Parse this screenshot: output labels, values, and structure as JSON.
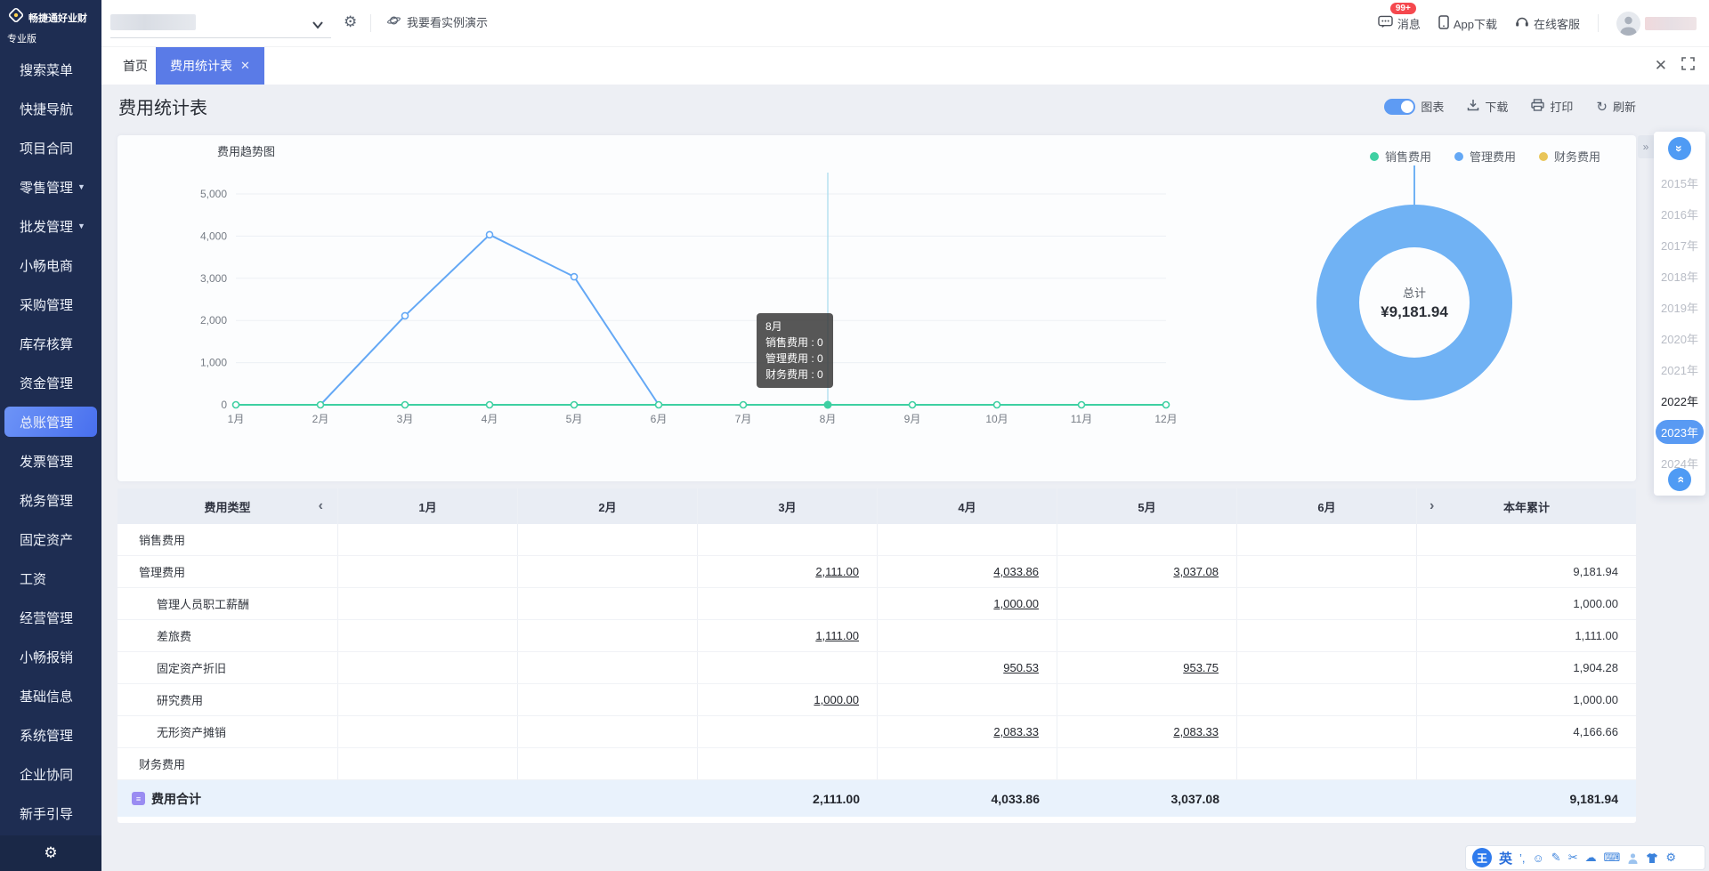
{
  "brand": {
    "name": "畅捷通好业财",
    "edition": "专业版"
  },
  "topbar": {
    "demo_text": "我要看实例演示",
    "messages_label": "消息",
    "messages_badge": "99+",
    "app_label": "App下载",
    "support_label": "在线客服"
  },
  "tabs": [
    {
      "label": "首页",
      "active": false,
      "closable": false
    },
    {
      "label": "费用统计表",
      "active": true,
      "closable": true
    }
  ],
  "sidebar": {
    "items": [
      {
        "label": "搜索菜单"
      },
      {
        "label": "快捷导航"
      },
      {
        "label": "项目合同"
      },
      {
        "label": "零售管理",
        "arrow": true
      },
      {
        "label": "批发管理",
        "arrow": true
      },
      {
        "label": "小畅电商"
      },
      {
        "label": "采购管理"
      },
      {
        "label": "库存核算"
      },
      {
        "label": "资金管理"
      },
      {
        "label": "总账管理",
        "active": true
      },
      {
        "label": "发票管理"
      },
      {
        "label": "税务管理"
      },
      {
        "label": "固定资产"
      },
      {
        "label": "工资"
      },
      {
        "label": "经营管理"
      },
      {
        "label": "小畅报销"
      },
      {
        "label": "基础信息"
      },
      {
        "label": "系统管理"
      },
      {
        "label": "企业协同"
      },
      {
        "label": "新手引导"
      }
    ]
  },
  "page": {
    "title": "费用统计表",
    "toolbar": {
      "chart_toggle_label": "图表",
      "download_label": "下载",
      "print_label": "打印",
      "refresh_label": "刷新"
    }
  },
  "chart_data": [
    {
      "type": "line",
      "title": "费用趋势图",
      "x": [
        "1月",
        "2月",
        "3月",
        "4月",
        "5月",
        "6月",
        "7月",
        "8月",
        "9月",
        "10月",
        "11月",
        "12月"
      ],
      "series": [
        {
          "name": "财务费用",
          "color": "#e9c558",
          "values": [
            0,
            0,
            0,
            0,
            0,
            0,
            0,
            0,
            0,
            0,
            0,
            0
          ]
        },
        {
          "name": "管理费用",
          "color": "#64a8f5",
          "values": [
            0,
            0,
            2111.0,
            4033.86,
            3037.08,
            0,
            0,
            0,
            0,
            0,
            0,
            0
          ]
        },
        {
          "name": "销售费用",
          "color": "#3ed0a2",
          "values": [
            0,
            0,
            0,
            0,
            0,
            0,
            0,
            0,
            0,
            0,
            0,
            0
          ]
        }
      ],
      "ylim": [
        0,
        5000
      ],
      "yticks": [
        "0",
        "1,000",
        "2,000",
        "3,000",
        "4,000",
        "5,000"
      ],
      "legend_position": "top-right",
      "grid": true,
      "highlight_month": "8月"
    },
    {
      "type": "pie",
      "title": "总计",
      "center_label": "总计",
      "center_value": "¥9,181.94",
      "slices": [
        {
          "name": "管理费用",
          "value": 9181.94,
          "color": "#70b2f4"
        }
      ]
    }
  ],
  "tooltip": {
    "title": "8月",
    "lines": [
      "销售费用 : 0",
      "管理费用 : 0",
      "财务费用 : 0"
    ]
  },
  "legend": [
    {
      "label": "销售费用",
      "color": "#3ed0a2"
    },
    {
      "label": "管理费用",
      "color": "#64a8f5"
    },
    {
      "label": "财务费用",
      "color": "#e9c558"
    }
  ],
  "donut": {
    "label": "总计",
    "value": "¥9,181.94"
  },
  "years": {
    "list": [
      "2015年",
      "2016年",
      "2017年",
      "2018年",
      "2019年",
      "2020年",
      "2021年",
      "2022年",
      "2023年",
      "2024年"
    ],
    "selected": "2023年",
    "current": "2022年"
  },
  "table": {
    "headers": [
      "费用类型",
      "1月",
      "2月",
      "3月",
      "4月",
      "5月",
      "6月",
      "本年累计"
    ],
    "rows": [
      {
        "label": "销售费用",
        "indent": false,
        "values": [
          "",
          "",
          "",
          "",
          "",
          "",
          ""
        ],
        "links": [
          false,
          false,
          false,
          false,
          false,
          false,
          false
        ]
      },
      {
        "label": "管理费用",
        "indent": false,
        "values": [
          "",
          "",
          "2,111.00",
          "4,033.86",
          "3,037.08",
          "",
          "9,181.94"
        ],
        "links": [
          false,
          false,
          true,
          true,
          true,
          false,
          false
        ]
      },
      {
        "label": "管理人员职工薪酬",
        "indent": true,
        "values": [
          "",
          "",
          "",
          "1,000.00",
          "",
          "",
          "1,000.00"
        ],
        "links": [
          false,
          false,
          false,
          true,
          false,
          false,
          false
        ]
      },
      {
        "label": "差旅费",
        "indent": true,
        "values": [
          "",
          "",
          "1,111.00",
          "",
          "",
          "",
          "1,111.00"
        ],
        "links": [
          false,
          false,
          true,
          false,
          false,
          false,
          false
        ]
      },
      {
        "label": "固定资产折旧",
        "indent": true,
        "values": [
          "",
          "",
          "",
          "950.53",
          "953.75",
          "",
          "1,904.28"
        ],
        "links": [
          false,
          false,
          false,
          true,
          true,
          false,
          false
        ]
      },
      {
        "label": "研究费用",
        "indent": true,
        "values": [
          "",
          "",
          "1,000.00",
          "",
          "",
          "",
          "1,000.00"
        ],
        "links": [
          false,
          false,
          true,
          false,
          false,
          false,
          false
        ]
      },
      {
        "label": "无形资产摊销",
        "indent": true,
        "values": [
          "",
          "",
          "",
          "2,083.33",
          "2,083.33",
          "",
          "4,166.66"
        ],
        "links": [
          false,
          false,
          false,
          true,
          true,
          false,
          false
        ]
      },
      {
        "label": "财务费用",
        "indent": false,
        "values": [
          "",
          "",
          "",
          "",
          "",
          "",
          ""
        ],
        "links": [
          false,
          false,
          false,
          false,
          false,
          false,
          false
        ]
      }
    ],
    "total_row": {
      "label": "费用合计",
      "values": [
        "",
        "",
        "2,111.00",
        "4,033.86",
        "3,037.08",
        "",
        "9,181.94"
      ]
    }
  },
  "ime": {
    "mode": "英"
  }
}
